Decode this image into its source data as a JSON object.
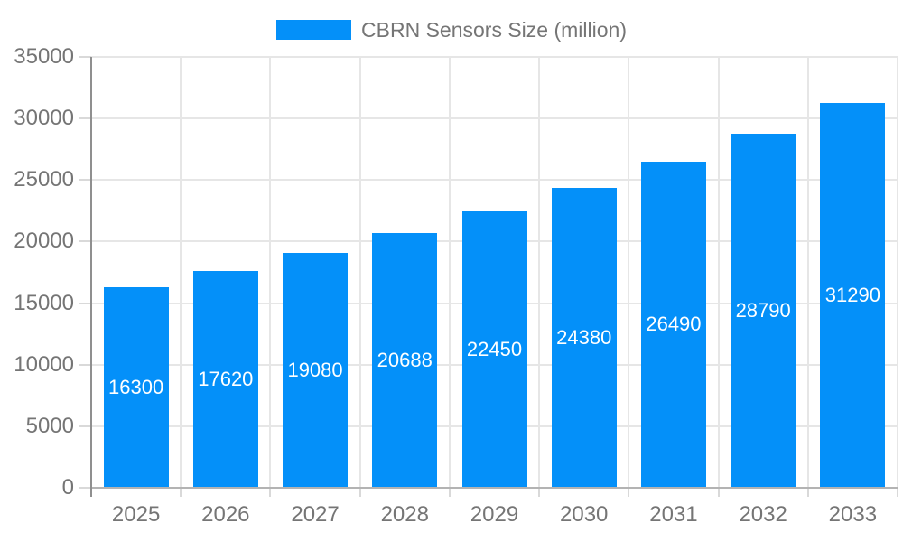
{
  "chart_data": {
    "type": "bar",
    "title": "CBRN Sensors Size (million)",
    "legend": [
      "CBRN Sensors Size (million)"
    ],
    "legend_position": "top",
    "categories": [
      "2025",
      "2026",
      "2027",
      "2028",
      "2029",
      "2030",
      "2031",
      "2032",
      "2033"
    ],
    "values": [
      16300,
      17620,
      19080,
      20688,
      22450,
      24380,
      26490,
      28790,
      31290
    ],
    "xlabel": "",
    "ylabel": "",
    "ylim": [
      0,
      35000
    ],
    "yticks": [
      0,
      5000,
      10000,
      15000,
      20000,
      25000,
      30000,
      35000
    ],
    "grid": true,
    "colors": {
      "bar": "#0490f9",
      "bar_label": "#ffffff",
      "axis_label": "#757575",
      "legend_label": "#757575",
      "grid": "#e6e6e6",
      "axis_line": "#8f8f8f",
      "baseline": "#b3b3b3",
      "tick": "#d9d9d9",
      "background": "#ffffff"
    }
  }
}
